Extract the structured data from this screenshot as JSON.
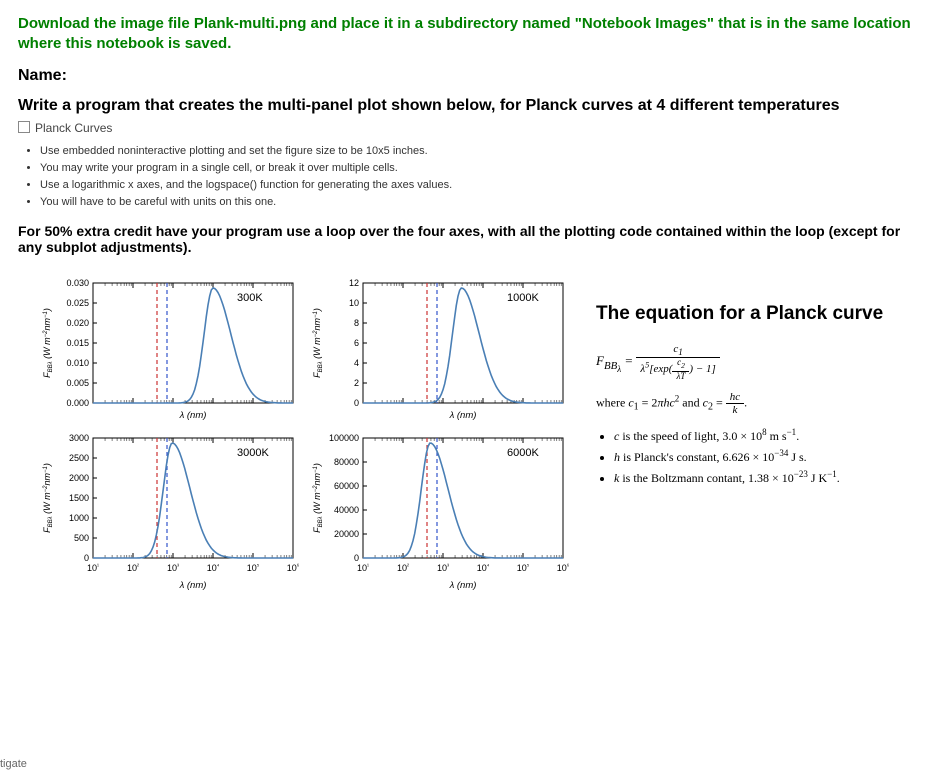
{
  "header_instruction": "Download the image file Plank-multi.png and place it in a subdirectory named \"Notebook Images\" that is in the same location where this notebook is saved.",
  "name_label": "Name:",
  "main_heading": "Write a program that creates the multi-panel plot shown below, for Planck curves at 4 different temperatures",
  "subtitle": "Planck Curves",
  "bullets": [
    "Use embedded noninteractive plotting and set the figure size to be 10x5 inches.",
    "You may write your program in a single cell, or break it over multiple cells.",
    "Use a logarithmic x axes, and the logspace() function for generating the axes values.",
    "You will have to be careful with units on this one."
  ],
  "extra_credit": "For 50% extra credit have your program use a loop over the four axes, with all the plotting code contained within the loop (except for any subplot adjustments).",
  "panels": [
    {
      "label": "300K",
      "yticks": [
        "0.030",
        "0.025",
        "0.020",
        "0.015",
        "0.010",
        "0.005",
        "0.000"
      ],
      "show_xaxis_ticks": false
    },
    {
      "label": "1000K",
      "yticks": [
        "12",
        "10",
        "8",
        "6",
        "4",
        "2",
        "0"
      ],
      "show_xaxis_ticks": false
    },
    {
      "label": "3000K",
      "yticks": [
        "3000",
        "2500",
        "2000",
        "1500",
        "1000",
        "500",
        "0"
      ],
      "show_xaxis_ticks": true
    },
    {
      "label": "6000K",
      "yticks": [
        "100000",
        "80000",
        "60000",
        "40000",
        "20000",
        "0"
      ],
      "show_xaxis_ticks": true
    }
  ],
  "xlabel": "λ (nm)",
  "ylabel": "F_BBλ (W m⁻²nm⁻¹)",
  "xticks": [
    "10¹",
    "10²",
    "10³",
    "10⁴",
    "10⁵",
    "10⁶"
  ],
  "curve_color": "#4a7fb5",
  "vline1_color": "#cc3333",
  "vline2_color": "#3355cc",
  "axis_color": "#000000",
  "grid_bg": "#ffffff",
  "curve_peaks_logx": [
    4.0,
    3.46,
    2.98,
    2.68
  ],
  "eq_title": "The equation for a Planck curve",
  "eq_lhs": "F_BBλ",
  "eq_num": "c₁",
  "eq_den": "λ⁵[exp(c₂/λT) − 1]",
  "where_text": "where c₁ = 2πhc² and c₂ = hc/k.",
  "constants": [
    "c is the speed of light, 3.0 × 10⁸ m s⁻¹.",
    "h is Planck's constant, 6.626 × 10⁻³⁴ J s.",
    "k is the Boltzmann contant, 1.38 × 10⁻²³ J K⁻¹."
  ],
  "truncated_word": "tigate"
}
